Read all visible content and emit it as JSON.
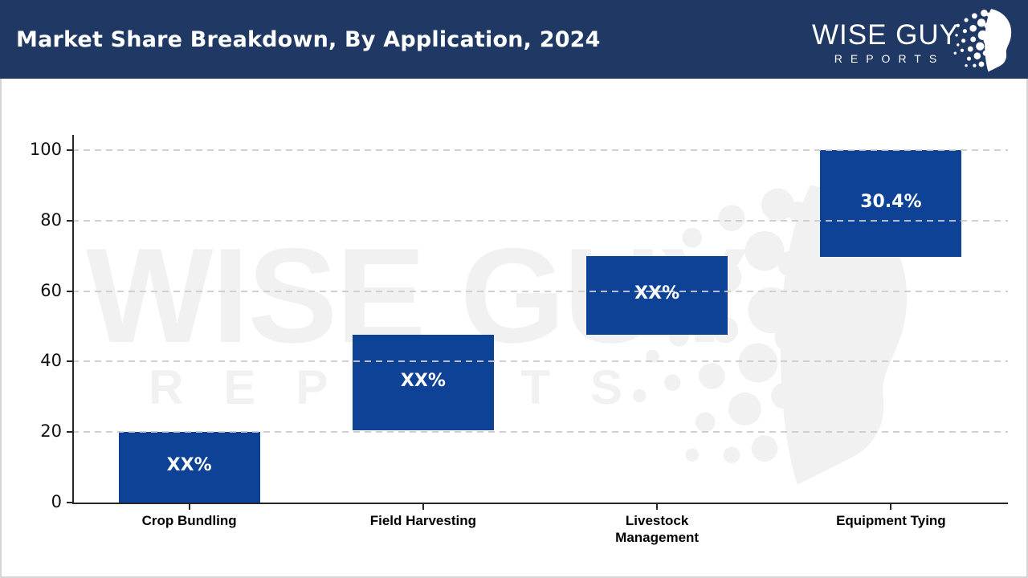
{
  "header": {
    "title": "Market Share Breakdown, By Application, 2024",
    "brand": {
      "line1": "WISE GUY",
      "line2": "REPORTS"
    },
    "background_color": "#1f3864"
  },
  "watermark": {
    "line1": "WISE GUY",
    "line2": "REPORTS"
  },
  "chart_data": {
    "type": "bar",
    "subtype": "floating-segment-waterfall",
    "title": "Market Share Breakdown, By Application, 2024",
    "categories": [
      "Crop Bundling",
      "Field Harvesting",
      "Livestock Management",
      "Equipment Tying"
    ],
    "series": [
      {
        "name": "Market Share (%)",
        "segments": [
          {
            "category": "Crop Bundling",
            "from": 0,
            "to": 20,
            "label": "XX%"
          },
          {
            "category": "Field Harvesting",
            "from": 20.5,
            "to": 47.5,
            "label": "XX%"
          },
          {
            "category": "Livestock Management",
            "from": 47.5,
            "to": 70,
            "label": "XX%"
          },
          {
            "category": "Equipment Tying",
            "from": 69.6,
            "to": 100,
            "label": "30.4%"
          }
        ]
      }
    ],
    "yticks": [
      0,
      20,
      40,
      60,
      80,
      100
    ],
    "ylim": [
      0,
      104
    ],
    "xlabel": "",
    "ylabel": "",
    "grid": "horizontal-dashed",
    "legend": "none",
    "bar_color": "#0d4296",
    "bar_label_color": "#ffffff",
    "axis_color": "#262626"
  }
}
